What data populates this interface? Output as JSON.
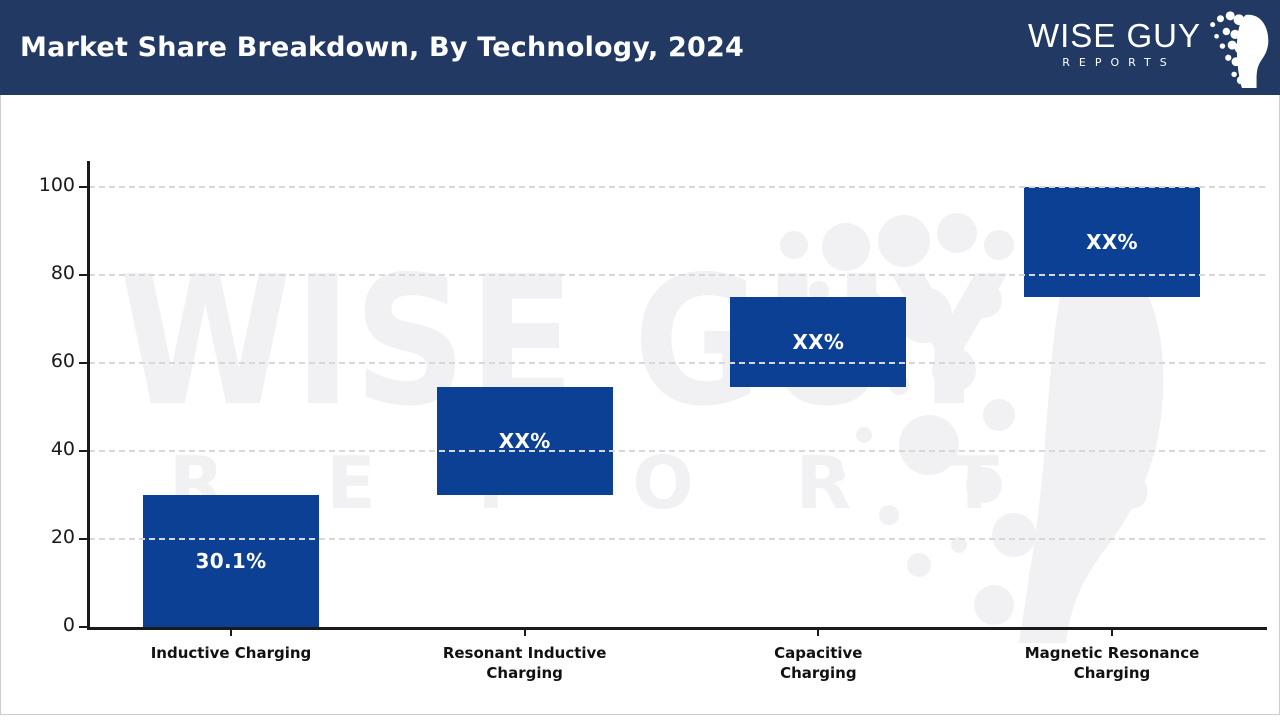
{
  "header": {
    "title": "Market Share Breakdown, By Technology, 2024",
    "logo": {
      "line1": "WISE GUY",
      "line2": "REPORTS"
    }
  },
  "watermark": {
    "line1": "WISE GUY",
    "line2": "REPORTS"
  },
  "chart_data": {
    "type": "bar",
    "subtype": "waterfall",
    "title": "Market Share Breakdown, By Technology, 2024",
    "categories": [
      {
        "label": "Inductive Charging",
        "lines": [
          "Inductive Charging"
        ]
      },
      {
        "label": "Resonant Inductive Charging",
        "lines": [
          "Resonant Inductive",
          "Charging"
        ]
      },
      {
        "label": "Capacitive Charging",
        "lines": [
          "Capacitive",
          "Charging"
        ]
      },
      {
        "label": "Magnetic Resonance Charging",
        "lines": [
          "Magnetic Resonance",
          "Charging"
        ]
      }
    ],
    "segments": [
      {
        "start": 0,
        "end": 30.1,
        "label": "30.1%"
      },
      {
        "start": 30.1,
        "end": 54.5,
        "label": "XX%"
      },
      {
        "start": 54.5,
        "end": 75,
        "label": "XX%"
      },
      {
        "start": 75,
        "end": 100,
        "label": "XX%"
      }
    ],
    "ylim": [
      0,
      100
    ],
    "yticks": [
      0,
      20,
      40,
      60,
      80,
      100
    ],
    "xlabel": "",
    "ylabel": "",
    "grid": "horizontal-dashed",
    "legend": "none",
    "bar_color": "#0C4094",
    "bar_label_color": "#FFFFFF",
    "header_color": "#223A63",
    "grid_color": "#D8D8D8",
    "watermark_color": "#F1F1F4"
  }
}
